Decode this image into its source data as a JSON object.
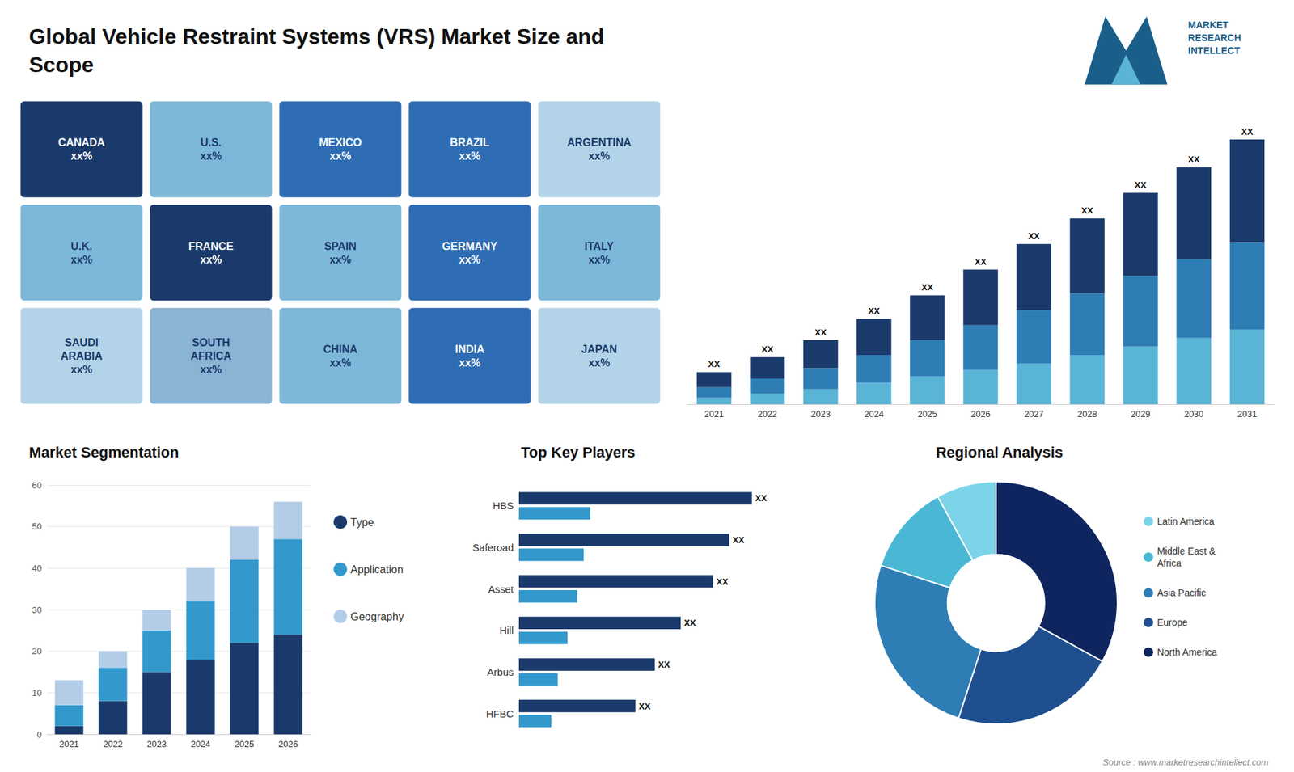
{
  "title": "Global Vehicle Restraint Systems (VRS) Market Size and\nScope",
  "annotations": [
    "MARKET\nRESEARCH\nINTELLECT",
    "Source : www.marketresearchintellect.com"
  ],
  "chart_data": [
    {
      "type": "map",
      "categories": [
        "CANADA\nxx%",
        "U.S.\nxx%",
        "MEXICO\nxx%",
        "BRAZIL\nxx%",
        "ARGENTINA\nxx%",
        "U.K.\nxx%",
        "FRANCE\nxx%",
        "SPAIN\nxx%",
        "GERMANY\nxx%",
        "ITALY\nxx%",
        "SAUDI\nARABIA\nxx%",
        "SOUTH\nAFRICA\nxx%",
        "CHINA\nxx%",
        "INDIA\nxx%",
        "JAPAN\nxx%"
      ],
      "colors": [
        "#1a3a6b",
        "#7db8d8",
        "#2e6db4",
        "#2e6db4",
        "#b3d4e8",
        "#7db8d8",
        "#1a3a6b",
        "#7db8d8",
        "#2e6db4",
        "#7db8d8",
        "#b3d4e8",
        "#8ab4d4",
        "#7db8d8",
        "#2e6db4",
        "#b3d4e8"
      ]
    },
    {
      "type": "bar",
      "stacked": true,
      "categories": [
        "2021",
        "2022",
        "2023",
        "2024",
        "2025",
        "2026",
        "2027",
        "2028",
        "2029",
        "2030",
        "2031"
      ],
      "series": [
        {
          "color": "#5ab4d6",
          "values": [
            1.5,
            2.5,
            3.5,
            5.0,
            6.5,
            8.0,
            9.5,
            11.5,
            13.5,
            15.5,
            17.5
          ]
        },
        {
          "color": "#2e7db5",
          "values": [
            2.5,
            3.5,
            5.0,
            6.5,
            8.5,
            10.5,
            12.5,
            14.5,
            16.5,
            18.5,
            20.5
          ]
        },
        {
          "color": "#1a3a6b",
          "values": [
            3.5,
            5.0,
            6.5,
            8.5,
            10.5,
            13.0,
            15.5,
            17.5,
            19.5,
            21.5,
            24.0
          ],
          "data_labels": true,
          "value_labels": [
            "XX",
            "XX",
            "XX",
            "XX",
            "XX",
            "XX",
            "XX",
            "XX",
            "XX",
            "XX",
            "XX"
          ]
        }
      ],
      "ylim": [
        0,
        71
      ],
      "tick_labels": "x",
      "grid": false
    },
    {
      "type": "bar",
      "stacked": true,
      "title": "Market Segmentation",
      "categories": [
        "2021",
        "2022",
        "2023",
        "2024",
        "2025",
        "2026"
      ],
      "series": [
        {
          "name": "Type",
          "color": "#1a3a6b",
          "values": [
            2,
            8,
            15,
            18,
            22,
            24
          ]
        },
        {
          "name": "Application",
          "color": "#3399cc",
          "values": [
            5,
            8,
            10,
            14,
            20,
            23
          ]
        },
        {
          "name": "Geography",
          "color": "#b3cde8",
          "values": [
            6,
            4,
            5,
            8,
            8,
            9
          ]
        }
      ],
      "ylim": [
        0,
        60
      ],
      "yticks": [
        0,
        10,
        20,
        30,
        40,
        50,
        60
      ],
      "grid": true,
      "legend": "right"
    },
    {
      "type": "bar",
      "orientation": "horizontal",
      "title": "Top Key Players",
      "categories": [
        "HBS",
        "Saferoad",
        "Asset",
        "Hill",
        "Arbus",
        "HFBC"
      ],
      "series": [
        {
          "color": "#1a3a6b",
          "values": [
            0.72,
            0.65,
            0.6,
            0.5,
            0.42,
            0.36
          ],
          "data_labels": true,
          "value_labels": [
            "XX",
            "XX",
            "XX",
            "XX",
            "XX",
            "XX"
          ]
        },
        {
          "color": "#3399cc",
          "values": [
            0.22,
            0.2,
            0.18,
            0.15,
            0.12,
            0.1
          ]
        }
      ],
      "xlim": [
        0,
        1.0
      ],
      "tick_labels": "y",
      "grid": false
    },
    {
      "type": "donut",
      "title": "Regional Analysis",
      "categories": [
        "Latin America",
        "Middle East &\nAfrica",
        "Asia Pacific",
        "Europe",
        "North America"
      ],
      "values": [
        8,
        12,
        25,
        22,
        33
      ],
      "colors": [
        "#7dd4e8",
        "#4ab8d4",
        "#2e7db5",
        "#1f4f8f",
        "#0f2560"
      ],
      "legend": "right"
    }
  ]
}
